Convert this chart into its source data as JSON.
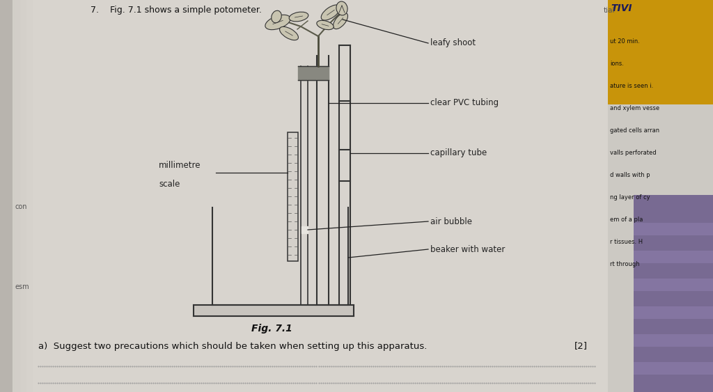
{
  "bg_color": "#b8b4ae",
  "page_color": "#d8d4ce",
  "title_text": "7.    Fig. 7.1 shows a simple potometer.",
  "fig_label": "Fig. 7.1",
  "question_text": "a)  Suggest two precautions which should be taken when setting up this apparatus.",
  "marks_text": "[2]",
  "labels": {
    "leafy_shoot": "leafy shoot",
    "clear_pvc": "clear PVC tubing",
    "capillary_tube": "capillary tube",
    "millimetre_scale": "millimetre\nscale",
    "air_bubble": "air bubble",
    "beaker_with_water": "beaker with water"
  },
  "gold_color": "#c8940a",
  "sidebar_bg": "#ccc8c2",
  "sidebar_text": [
    "TIVI",
    "ut 20 min.",
    "ions.",
    "ature is seen i.",
    "and xylem vesse",
    "gated cells arran",
    "valls perforated",
    "d walls with p",
    "ng layer of cy",
    "em of a pla",
    "r tissues. H",
    "rt through"
  ],
  "line_color": "#333333",
  "label_color": "#222222"
}
